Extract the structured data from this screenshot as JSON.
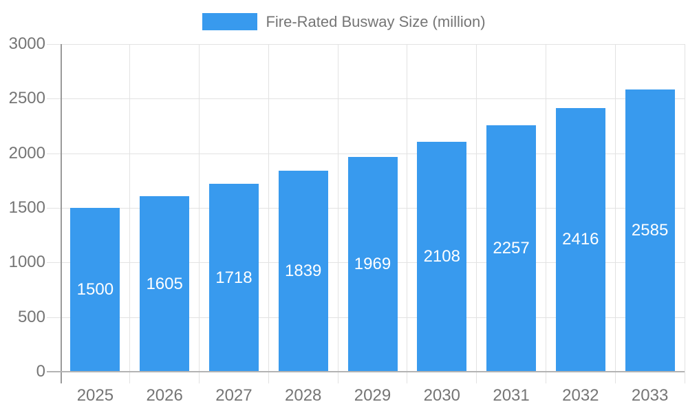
{
  "chart_data": {
    "type": "bar",
    "title": "",
    "categories": [
      "2025",
      "2026",
      "2027",
      "2028",
      "2029",
      "2030",
      "2031",
      "2032",
      "2033"
    ],
    "series": [
      {
        "name": "Fire-Rated Busway Size (million)",
        "values": [
          1500,
          1605,
          1718,
          1839,
          1969,
          2108,
          2257,
          2416,
          2585
        ]
      }
    ],
    "xlabel": "",
    "ylabel": "",
    "ylim": [
      0,
      3000
    ],
    "yticks": [
      0,
      500,
      1000,
      1500,
      2000,
      2500,
      3000
    ],
    "grid": true,
    "legend_position": "top",
    "bar_value_labels": true
  },
  "colors": {
    "bar": "#389AEE",
    "bar_label_text": "#FFFFFF",
    "grid_line": "#E2E2E2",
    "axis_line": "#999999",
    "baseline": "#B3B3B3",
    "tick_text": "#757575",
    "legend_text": "#757575"
  }
}
